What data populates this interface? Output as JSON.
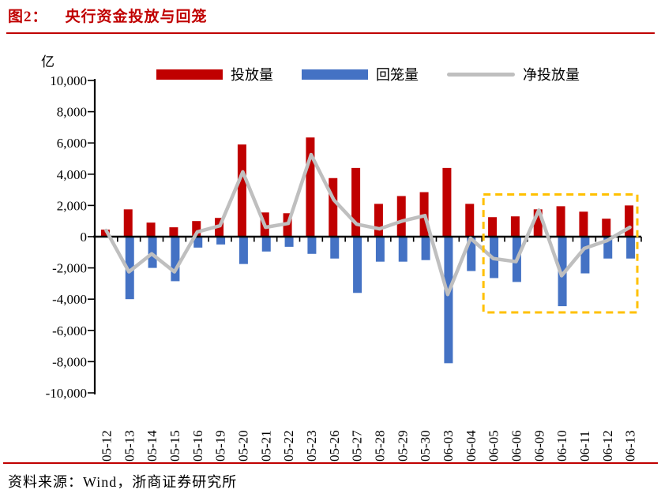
{
  "header": {
    "fig_label": "图2：",
    "title": "央行资金投放与回笼"
  },
  "footer": {
    "source": "资料来源：Wind，浙商证券研究所"
  },
  "chart_data": {
    "type": "bar",
    "subtype": "clustered bars with net line overlay",
    "title": "央行资金投放与回笼",
    "unit_label": "亿",
    "xlabel": "",
    "ylabel": "亿",
    "ylim": [
      -10000,
      10000
    ],
    "y_step": 2000,
    "grid": false,
    "legend_position": "top",
    "y_tick_labels": [
      "10,000",
      "8,000",
      "6,000",
      "4,000",
      "2,000",
      "0",
      "-2,000",
      "-4,000",
      "-6,000",
      "-8,000",
      "-10,000"
    ],
    "categories": [
      "05-12",
      "05-13",
      "05-14",
      "05-15",
      "05-16",
      "05-19",
      "05-20",
      "05-21",
      "05-22",
      "05-23",
      "05-26",
      "05-27",
      "05-28",
      "05-29",
      "05-30",
      "06-03",
      "06-04",
      "06-05",
      "06-06",
      "06-09",
      "06-10",
      "06-11",
      "06-12",
      "06-13"
    ],
    "series": [
      {
        "name": "投放量",
        "type": "bar",
        "color": "#C00000",
        "values": [
          450,
          1750,
          900,
          600,
          1000,
          1200,
          5900,
          1550,
          1500,
          6350,
          3750,
          4400,
          2100,
          2600,
          2850,
          4400,
          2100,
          1250,
          1300,
          1750,
          1950,
          1600,
          1150,
          2000
        ]
      },
      {
        "name": "回笼量",
        "type": "bar",
        "color": "#4472C4",
        "values": [
          -50,
          -4000,
          -2000,
          -2850,
          -700,
          -500,
          -1750,
          -950,
          -650,
          -1100,
          -1400,
          -3600,
          -1600,
          -1600,
          -1500,
          -8100,
          -2200,
          -2650,
          -2900,
          -50,
          -4450,
          -2350,
          -1400,
          -1400
        ]
      },
      {
        "name": "净投放量",
        "type": "line",
        "color": "#BFBFBF",
        "values": [
          400,
          -2250,
          -1100,
          -2250,
          300,
          700,
          4150,
          600,
          850,
          5250,
          2350,
          800,
          500,
          1000,
          1350,
          -3700,
          -100,
          -1400,
          -1600,
          1700,
          -2500,
          -750,
          -250,
          600
        ]
      }
    ],
    "highlight_box": {
      "from": "06-05",
      "to": "06-13",
      "color": "#FFC000",
      "y_top": 2700,
      "y_bottom": -4850
    },
    "axis_color": "#000000"
  }
}
